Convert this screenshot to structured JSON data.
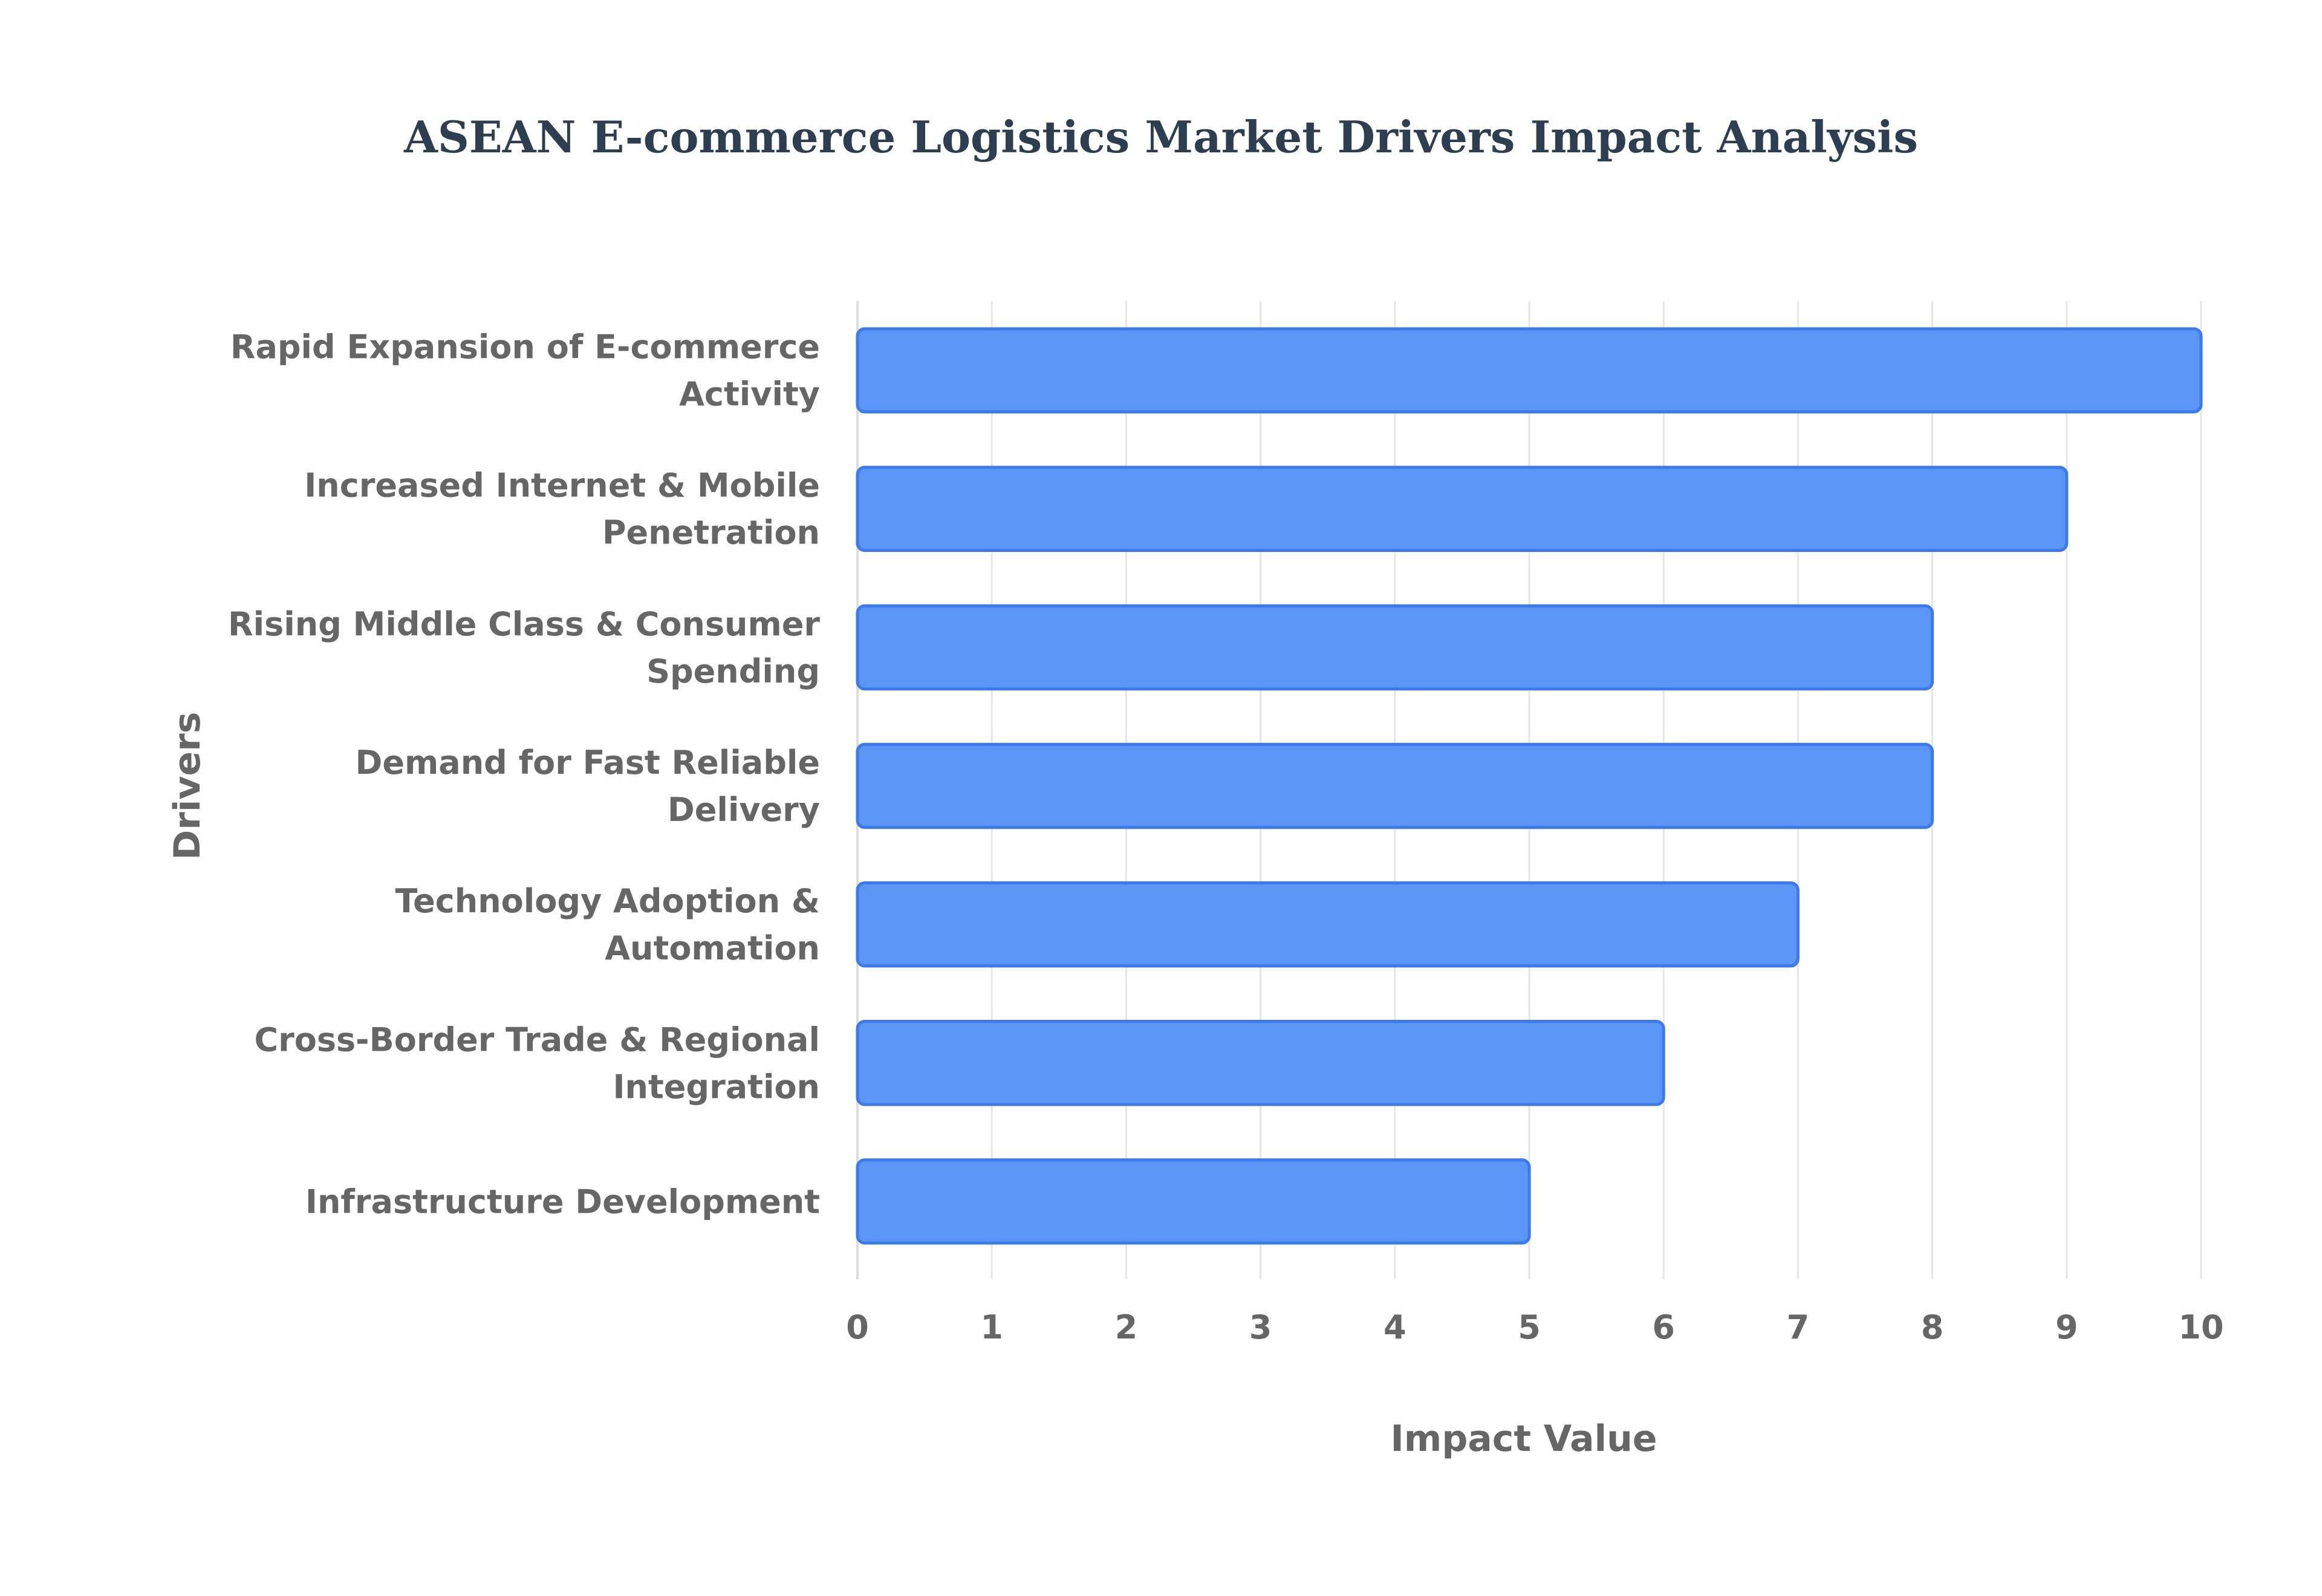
{
  "chart_data": {
    "type": "bar",
    "orientation": "horizontal",
    "title": "ASEAN E-commerce Logistics Market Drivers Impact Analysis",
    "xlabel": "Impact Value",
    "ylabel": "Drivers",
    "categories": [
      "Rapid Expansion of E-commerce Activity",
      "Increased Internet & Mobile Penetration",
      "Rising Middle Class & Consumer Spending",
      "Demand for Fast Reliable Delivery",
      "Technology Adoption & Automation",
      "Cross-Border Trade & Regional Integration",
      "Infrastructure Development"
    ],
    "category_label_lines": [
      [
        "Rapid Expansion of E-commerce",
        "Activity"
      ],
      [
        "Increased Internet & Mobile",
        "Penetration"
      ],
      [
        "Rising Middle Class & Consumer",
        "Spending"
      ],
      [
        "Demand for Fast Reliable",
        "Delivery"
      ],
      [
        "Technology Adoption &",
        "Automation"
      ],
      [
        "Cross-Border Trade & Regional",
        "Integration"
      ],
      [
        "Infrastructure Development"
      ]
    ],
    "values": [
      10,
      9,
      8,
      8,
      7,
      6,
      5
    ],
    "xlim": [
      0,
      10
    ],
    "xticks": [
      "0",
      "1",
      "2",
      "3",
      "4",
      "5",
      "6",
      "7",
      "8",
      "9",
      "10"
    ],
    "grid": true,
    "legend": "none",
    "colors": {
      "bar_fill": "#5b95f5",
      "bar_stroke": "#3b7ae8",
      "title": "#2c3e50",
      "text": "#666666",
      "grid": "#e6e6e6"
    }
  }
}
